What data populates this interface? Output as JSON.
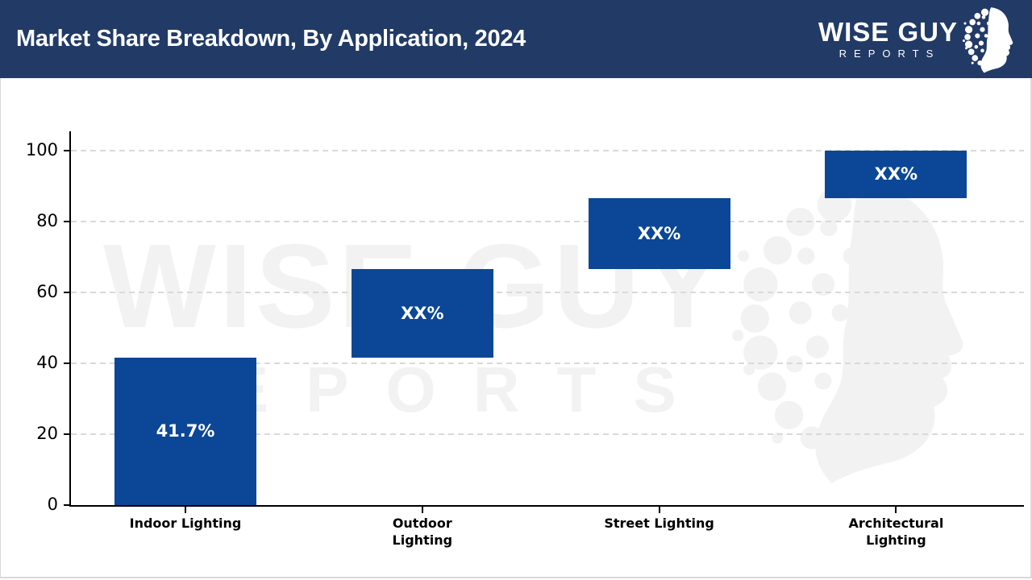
{
  "header": {
    "title": "Market Share Breakdown, By Application, 2024",
    "logo": {
      "line1": "WISE GUY",
      "line2": "REPORTS"
    }
  },
  "watermark": {
    "line1": "WISE GUY",
    "line2": "REPORTS"
  },
  "colors": {
    "header_bg": "#213A66",
    "bar": "#0B4796",
    "bar_label": "#FFFFFF",
    "grid": "#D9D9D9",
    "axis": "#000000",
    "watermark": "#F2F2F3",
    "frame_border": "#D9D9D9"
  },
  "chart_data": {
    "type": "bar",
    "subtype": "waterfall-floating-bars",
    "title": "Market Share Breakdown, By Application, 2024",
    "categories": [
      "Indoor Lighting",
      "Outdoor Lighting",
      "Street Lighting",
      "Architectural Lighting"
    ],
    "bars": [
      {
        "category": "Indoor Lighting",
        "start": 0,
        "end": 41.7,
        "label": "41.7%"
      },
      {
        "category": "Outdoor Lighting",
        "start": 41.7,
        "end": 66.7,
        "label": "XX%"
      },
      {
        "category": "Street Lighting",
        "start": 66.7,
        "end": 86.7,
        "label": "XX%"
      },
      {
        "category": "Architectural Lighting",
        "start": 86.7,
        "end": 100,
        "label": "XX%"
      }
    ],
    "xlabel": "",
    "ylabel": "",
    "ylim": [
      0,
      100
    ],
    "yticks": [
      0,
      20,
      40,
      60,
      80,
      100
    ],
    "grid": "horizontal-dashed",
    "legend": "none",
    "bar_color": "#0B4796",
    "label_color": "#FFFFFF"
  }
}
